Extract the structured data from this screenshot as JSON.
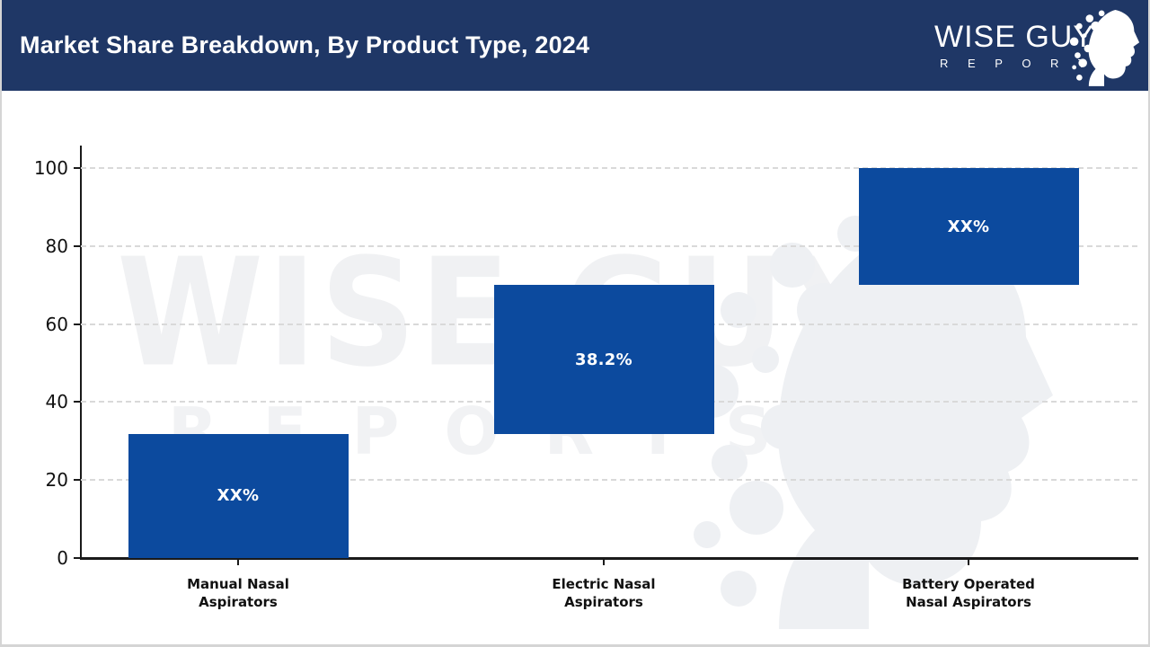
{
  "header": {
    "title": "Market Share Breakdown, By Product Type, 2024",
    "logo": {
      "line1": "WISE GUY",
      "line2": "R E P O R T S"
    }
  },
  "watermark": {
    "line1": "WISE GUY",
    "line2": "REPORTS"
  },
  "chart_data": {
    "type": "bar",
    "subtype": "floating-stacked-breakdown",
    "title": "Market Share Breakdown, By Product Type, 2024",
    "categories": [
      "Manual Nasal\nAspirators",
      "Electric Nasal\nAspirators",
      "Battery Operated\nNasal Aspirators"
    ],
    "bars": [
      {
        "label": "XX%",
        "start": 0,
        "end": 31.8
      },
      {
        "label": "38.2%",
        "start": 31.8,
        "end": 70
      },
      {
        "label": "XX%",
        "start": 70,
        "end": 100
      }
    ],
    "values_shown": [
      "XX%",
      "38.2%",
      "XX%"
    ],
    "yticks": [
      0,
      20,
      40,
      60,
      80,
      100
    ],
    "ylim": [
      0,
      105
    ],
    "xlabel": "",
    "ylabel": "",
    "grid": "horizontal-dashed",
    "legend": "none",
    "bar_color": "#0c4a9e"
  },
  "colors": {
    "header_bg": "#1f3766",
    "bar": "#0c4a9e",
    "grid": "#d9d9d9",
    "watermark": "#f0f1f3",
    "axis": "#1a1a1a",
    "title_text": "#ffffff",
    "bar_label_text": "#ffffff"
  }
}
